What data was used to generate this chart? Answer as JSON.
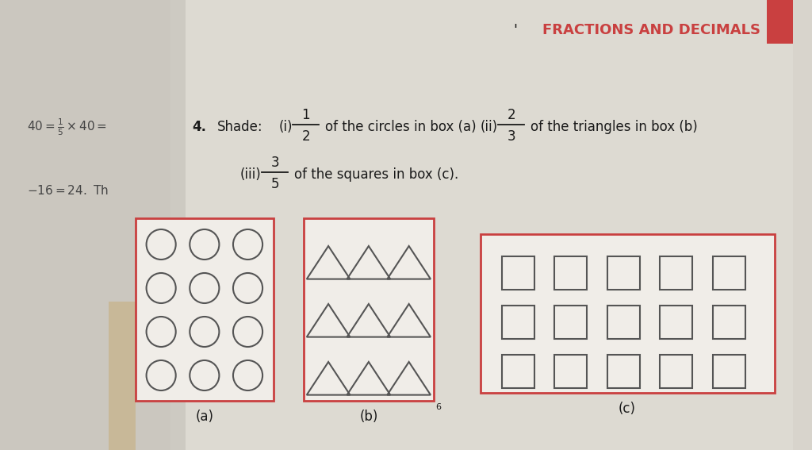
{
  "page_bg": "#d8d4cc",
  "left_shadow_color": "#c5c0b5",
  "spine_color": "#c8b89a",
  "title": "FRACTIONS AND DECIMALS",
  "title_color": "#c94040",
  "title_box_color": "#c94040",
  "shade_text": "Shade:",
  "question_num": "4.",
  "part_i": "(i)",
  "frac_i_num": "1",
  "frac_i_den": "2",
  "text_i": "of the circles in box (a)",
  "part_ii": "(ii)",
  "frac_ii_num": "2",
  "frac_ii_den": "3",
  "text_ii": "of the triangles in box (b)",
  "part_iii": "(iii)",
  "frac_iii_num": "3",
  "frac_iii_den": "5",
  "text_iii": "of the squares in box (c).",
  "label_a": "(a)",
  "label_b": "(b)",
  "label_c": "(c)",
  "box_border_color": "#c94040",
  "shape_color": "#555555",
  "text_color": "#1a1a1a",
  "left_text_color": "#444444",
  "circle_rows": 4,
  "circle_cols": 3,
  "triangle_rows": 3,
  "triangle_cols": 3,
  "square_rows": 3,
  "square_cols": 5
}
